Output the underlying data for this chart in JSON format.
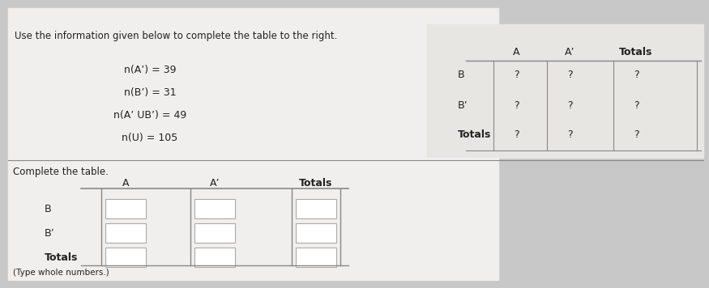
{
  "bg_color": "#c8c8c8",
  "white_panel_color": "#f0efed",
  "right_panel_color": "#e8e6e2",
  "text_color": "#222222",
  "title_text": "Use the information given below to complete the table to the right.",
  "given_lines": [
    "n(A’) = 39",
    "n(B’) = 31",
    "n(A’ UB’) = 49",
    "n(U) = 105"
  ],
  "complete_label": "Complete the table.",
  "right_table_headers": [
    "",
    "A",
    "A’",
    "Totals"
  ],
  "right_table_rows": [
    [
      "B",
      "?",
      "?",
      "?"
    ],
    [
      "B’",
      "?",
      "?",
      "?"
    ],
    [
      "Totals",
      "?",
      "?",
      "?"
    ]
  ],
  "bottom_table_headers": [
    "",
    "A",
    "A’",
    "Totals"
  ],
  "bottom_table_rows": [
    [
      "B",
      "",
      "",
      ""
    ],
    [
      "B’",
      "",
      "",
      ""
    ],
    [
      "Totals",
      "",
      "",
      ""
    ]
  ],
  "type_note": "(Type whole numbers.)",
  "line_color": "#888888",
  "box_color": "#aaaaaa"
}
